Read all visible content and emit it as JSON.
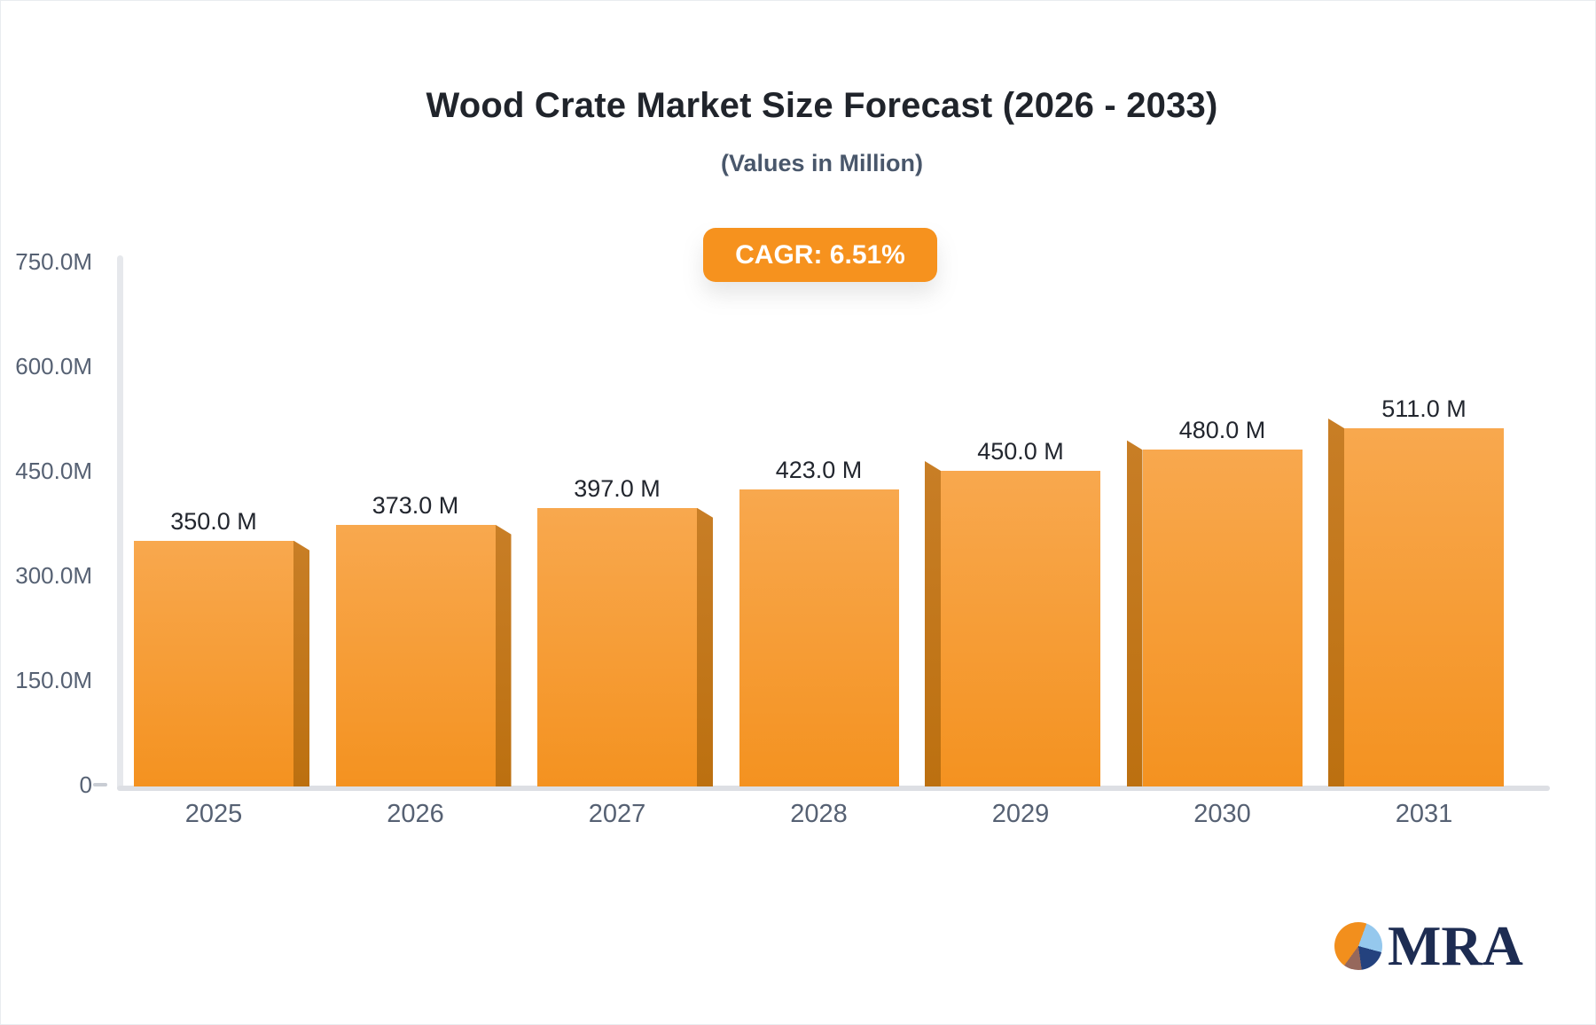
{
  "header": {
    "title": "Wood Crate Market Size Forecast (2026 - 2033)",
    "subtitle": "(Values in Million)",
    "cagr_badge": "CAGR: 6.51%"
  },
  "chart_data": {
    "type": "bar",
    "title": "Wood Crate Market Size Forecast (2026 - 2033)",
    "subtitle": "(Values in Million)",
    "annotation": "CAGR: 6.51%",
    "categories": [
      "2025",
      "2026",
      "2027",
      "2028",
      "2029",
      "2030",
      "2031"
    ],
    "values": [
      350,
      373,
      397,
      423,
      450,
      480,
      511
    ],
    "bar_labels": [
      "350.0 M",
      "373.0 M",
      "397.0 M",
      "423.0 M",
      "450.0 M",
      "480.0 M",
      "511.0 M"
    ],
    "unit": "Million",
    "ylabel": "",
    "xlabel": "",
    "ylim": [
      0,
      750
    ],
    "y_ticks": [
      {
        "label": "750.0M",
        "value": 750
      },
      {
        "label": "600.0M",
        "value": 600
      },
      {
        "label": "450.0M",
        "value": 450
      },
      {
        "label": "300.0M",
        "value": 300
      },
      {
        "label": "150.0M",
        "value": 150
      },
      {
        "label": "0",
        "value": 0
      }
    ],
    "grid": false,
    "legend": false,
    "style": "3d-extruded-bars"
  },
  "logo": {
    "text": "MRA"
  },
  "colors": {
    "bar_face_top": "#F8A84E",
    "bar_face_bottom": "#F49220",
    "bar_side_top": "#C87E26",
    "bar_side_bottom": "#BC7010",
    "badge_bg": "#F6921E",
    "badge_text": "#FFFFFF",
    "title_text": "#20242B",
    "subtitle_text": "#49576B",
    "value_text": "#22262E",
    "axis_text": "#566173",
    "axis_line": "#DDDFE4",
    "tick_dash": "#C9CDD4",
    "logo_navy": "#1D2C52",
    "logo_orange": "#F28F1D",
    "logo_lightblue": "#95C8ED",
    "logo_darkblue": "#24427E",
    "logo_brown": "#96685C"
  }
}
